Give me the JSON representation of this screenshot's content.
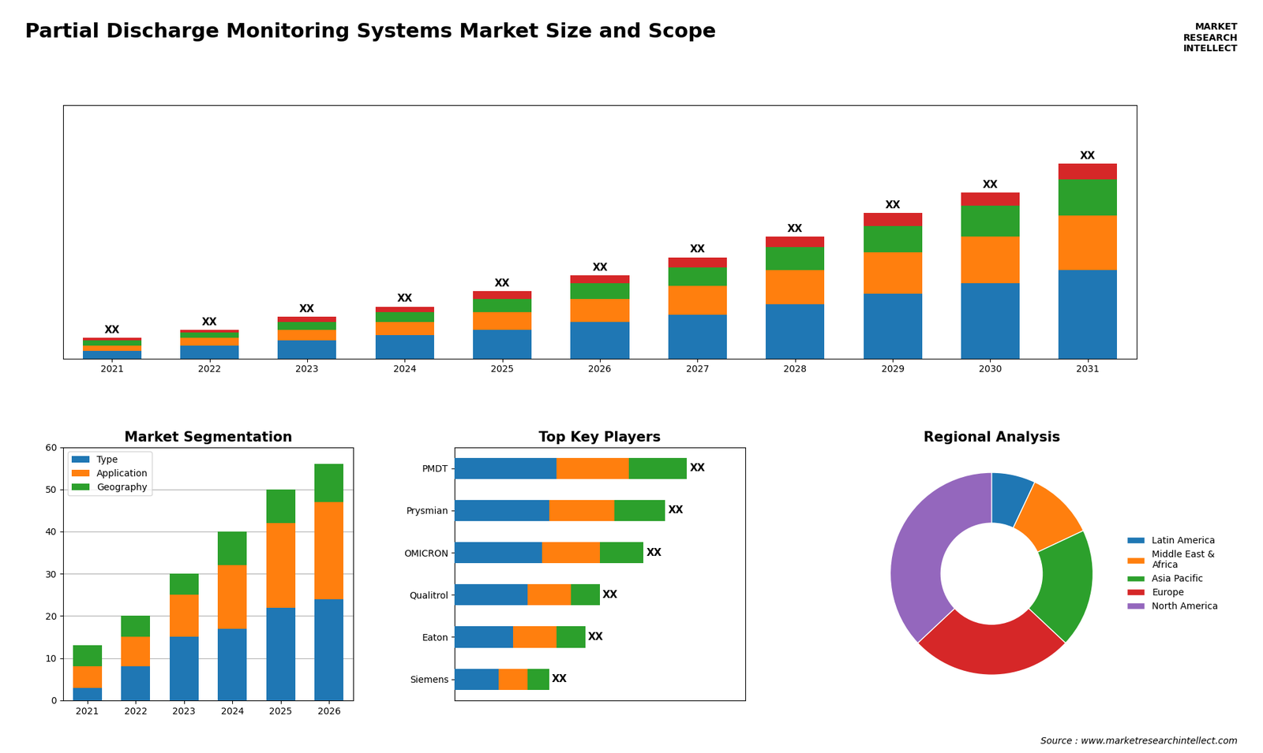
{
  "title": "Partial Discharge Monitoring Systems Market Size and Scope",
  "annotations": [
    "Source : www.marketresearchintellect.com",
    "MARKET\nRESEARCH\nINTELLECT"
  ],
  "chart_data": [
    {
      "type": "bar",
      "stacked": true,
      "categories": [
        "2021",
        "2022",
        "2023",
        "2024",
        "2025",
        "2026",
        "2027",
        "2028",
        "2029",
        "2030",
        "2031"
      ],
      "series": [
        {
          "values": [
            3,
            5,
            7,
            9,
            11,
            14,
            17,
            21,
            25,
            29,
            34
          ]
        },
        {
          "values": [
            2,
            3,
            4,
            5,
            7,
            9,
            11,
            13,
            16,
            18,
            21
          ]
        },
        {
          "values": [
            2,
            2,
            3,
            4,
            5,
            6,
            7,
            9,
            10,
            12,
            14
          ]
        },
        {
          "values": [
            1,
            1,
            2,
            2,
            3,
            3,
            4,
            4,
            5,
            5,
            6
          ],
          "value_labels": [
            "XX",
            "XX",
            "XX",
            "XX",
            "XX",
            "XX",
            "XX",
            "XX",
            "XX",
            "XX",
            "XX"
          ]
        }
      ],
      "ylim": [
        0,
        97.5
      ],
      "tick_labels": "x",
      "data_labels": true
    },
    {
      "type": "bar",
      "title": "Market Segmentation",
      "stacked": true,
      "categories": [
        "2021",
        "2022",
        "2023",
        "2024",
        "2025",
        "2026"
      ],
      "series": [
        {
          "name": "Type",
          "values": [
            3,
            8,
            15,
            17,
            22,
            24
          ]
        },
        {
          "name": "Application",
          "values": [
            5,
            7,
            10,
            15,
            20,
            23
          ]
        },
        {
          "name": "Geography",
          "values": [
            5,
            5,
            5,
            8,
            8,
            9
          ]
        }
      ],
      "ylim": [
        0,
        60
      ],
      "yticks": [
        0,
        10,
        20,
        30,
        40,
        50,
        60
      ],
      "grid": true,
      "legend": "upper left"
    },
    {
      "type": "bar",
      "title": "Top Key Players",
      "stacked": true,
      "orientation": "horizontal",
      "categories": [
        "PMDT",
        "Prysmian",
        "OMICRON",
        "Qualitrol",
        "Eaton",
        "Siemens"
      ],
      "series": [
        {
          "values": [
            7,
            6.5,
            6,
            5,
            4,
            3
          ]
        },
        {
          "values": [
            5,
            4.5,
            4,
            3,
            3,
            2
          ]
        },
        {
          "values": [
            4,
            3.5,
            3,
            2,
            2,
            1.5
          ],
          "value_labels": [
            "XX",
            "XX",
            "XX",
            "XX",
            "XX",
            "XX"
          ]
        }
      ],
      "xlim": [
        0,
        20
      ],
      "tick_labels": "y",
      "data_labels": true
    },
    {
      "type": "pie",
      "title": "Regional Analysis",
      "categories": [
        "Latin America",
        "Middle East &\nAfrica",
        "Asia Pacific",
        "Europe",
        "North America"
      ],
      "values": [
        7,
        11,
        19,
        26,
        37
      ],
      "legend": "center left"
    }
  ]
}
